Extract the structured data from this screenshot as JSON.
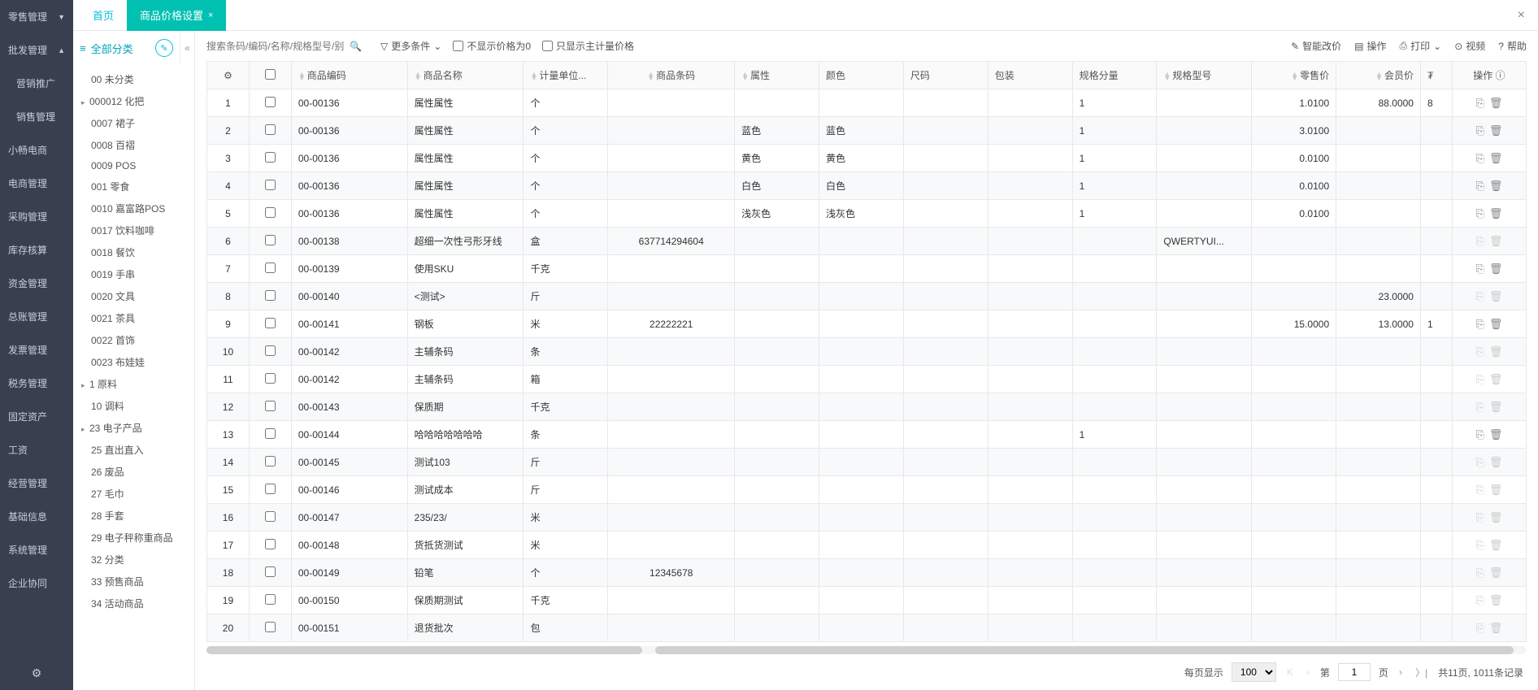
{
  "sidebar": {
    "items": [
      {
        "label": "零售管理",
        "arrow": "▼"
      },
      {
        "label": "批发管理",
        "arrow": "▲",
        "expanded": true,
        "children": [
          {
            "label": "营销推广"
          },
          {
            "label": "销售管理"
          }
        ]
      },
      {
        "label": "小畅电商"
      },
      {
        "label": "电商管理"
      },
      {
        "label": "采购管理"
      },
      {
        "label": "库存核算"
      },
      {
        "label": "资金管理"
      },
      {
        "label": "总账管理"
      },
      {
        "label": "发票管理"
      },
      {
        "label": "税务管理"
      },
      {
        "label": "固定资产"
      },
      {
        "label": "工资"
      },
      {
        "label": "经营管理"
      },
      {
        "label": "基础信息"
      },
      {
        "label": "系统管理"
      },
      {
        "label": "企业协同"
      }
    ],
    "gear": "⚙"
  },
  "tabs": {
    "home": "首页",
    "active": "商品价格设置",
    "close_all": "×"
  },
  "categories": {
    "header": "全部分类",
    "header_icon": "≡",
    "edit_icon": "✎",
    "collapse_icon": "«",
    "items": [
      {
        "label": "00 未分类"
      },
      {
        "label": "000012 化把",
        "caret": "▸"
      },
      {
        "label": "0007 裙子"
      },
      {
        "label": "0008 百褶"
      },
      {
        "label": "0009 POS"
      },
      {
        "label": "001 零食"
      },
      {
        "label": "0010 嘉富路POS"
      },
      {
        "label": "0017 饮料咖啡"
      },
      {
        "label": "0018 餐饮"
      },
      {
        "label": "0019 手串"
      },
      {
        "label": "0020 文具"
      },
      {
        "label": "0021 茶具"
      },
      {
        "label": "0022 首饰"
      },
      {
        "label": "0023 布娃娃"
      },
      {
        "label": "1 原料",
        "caret": "▸"
      },
      {
        "label": "10 调料"
      },
      {
        "label": "23 电子产品",
        "caret": "▸"
      },
      {
        "label": "25 直出直入"
      },
      {
        "label": "26 废品"
      },
      {
        "label": "27 毛巾"
      },
      {
        "label": "28 手套"
      },
      {
        "label": "29 电子秤称重商品"
      },
      {
        "label": "32 分类"
      },
      {
        "label": "33 预售商品"
      },
      {
        "label": "34 活动商品"
      }
    ]
  },
  "toolbar": {
    "search_placeholder": "搜索条码/编码/名称/规格型号/别名",
    "filter_label": "更多条件",
    "filter_icon": "▽",
    "dropdown_icon": "⌄",
    "chk_hide_zero": "不显示价格为0",
    "chk_main_unit": "只显示主计量价格",
    "smart_edit": "智能改价",
    "smart_icon": "✎",
    "operate": "操作",
    "operate_icon": "▤",
    "print": "打印",
    "print_icon": "⎙",
    "video": "视频",
    "video_icon": "⊙",
    "help": "帮助",
    "help_icon": "?"
  },
  "table": {
    "gear_icon": "⚙",
    "headers": {
      "code": "商品编码",
      "name": "商品名称",
      "unit": "计量单位...",
      "barcode": "商品条码",
      "attr": "属性",
      "color": "颜色",
      "size": "尺码",
      "pack": "包装",
      "spec_qty": "规格分量",
      "spec": "规格型号",
      "retail": "零售价",
      "member": "会员价",
      "extra": "₮",
      "ops": "操作",
      "ops_icon": "ⓘ"
    },
    "rows": [
      {
        "idx": "1",
        "code": "00-00136",
        "name": "属性属性",
        "unit": "个",
        "barcode": "",
        "attr": "",
        "color": "",
        "spec_qty": "1",
        "spec": "",
        "retail": "1.0100",
        "member": "88.0000",
        "extra": "8",
        "ops_on": true
      },
      {
        "idx": "2",
        "code": "00-00136",
        "name": "属性属性",
        "unit": "个",
        "barcode": "",
        "attr": "蓝色",
        "color": "蓝色",
        "spec_qty": "1",
        "spec": "",
        "retail": "3.0100",
        "member": "",
        "extra": "",
        "ops_on": true
      },
      {
        "idx": "3",
        "code": "00-00136",
        "name": "属性属性",
        "unit": "个",
        "barcode": "",
        "attr": "黄色",
        "color": "黄色",
        "spec_qty": "1",
        "spec": "",
        "retail": "0.0100",
        "member": "",
        "extra": "",
        "ops_on": true
      },
      {
        "idx": "4",
        "code": "00-00136",
        "name": "属性属性",
        "unit": "个",
        "barcode": "",
        "attr": "白色",
        "color": "白色",
        "spec_qty": "1",
        "spec": "",
        "retail": "0.0100",
        "member": "",
        "extra": "",
        "ops_on": true
      },
      {
        "idx": "5",
        "code": "00-00136",
        "name": "属性属性",
        "unit": "个",
        "barcode": "",
        "attr": "浅灰色",
        "color": "浅灰色",
        "spec_qty": "1",
        "spec": "",
        "retail": "0.0100",
        "member": "",
        "extra": "",
        "ops_on": true
      },
      {
        "idx": "6",
        "code": "00-00138",
        "name": "超细一次性弓形牙线",
        "unit": "盒",
        "barcode": "637714294604",
        "attr": "",
        "color": "",
        "spec_qty": "",
        "spec": "QWERTYUI...",
        "retail": "",
        "member": "",
        "extra": "",
        "ops_on": false
      },
      {
        "idx": "7",
        "code": "00-00139",
        "name": "使用SKU",
        "unit": "千克",
        "barcode": "",
        "attr": "",
        "color": "",
        "spec_qty": "",
        "spec": "",
        "retail": "",
        "member": "",
        "extra": "",
        "ops_on": true
      },
      {
        "idx": "8",
        "code": "00-00140",
        "name": "<测试>",
        "unit": "斤",
        "barcode": "",
        "attr": "",
        "color": "",
        "spec_qty": "",
        "spec": "",
        "retail": "",
        "member": "23.0000",
        "extra": "",
        "ops_on": false
      },
      {
        "idx": "9",
        "code": "00-00141",
        "name": "钢板",
        "unit": "米",
        "barcode": "22222221",
        "attr": "",
        "color": "",
        "spec_qty": "",
        "spec": "",
        "retail": "15.0000",
        "member": "13.0000",
        "extra": "1",
        "ops_on": true
      },
      {
        "idx": "10",
        "code": "00-00142",
        "name": "主辅条码",
        "unit": "条",
        "barcode": "",
        "attr": "",
        "color": "",
        "spec_qty": "",
        "spec": "",
        "retail": "",
        "member": "",
        "extra": "",
        "ops_on": false
      },
      {
        "idx": "11",
        "code": "00-00142",
        "name": "主辅条码",
        "unit": "箱",
        "barcode": "",
        "attr": "",
        "color": "",
        "spec_qty": "",
        "spec": "",
        "retail": "",
        "member": "",
        "extra": "",
        "ops_on": false
      },
      {
        "idx": "12",
        "code": "00-00143",
        "name": "保质期",
        "unit": "千克",
        "barcode": "",
        "attr": "",
        "color": "",
        "spec_qty": "",
        "spec": "",
        "retail": "",
        "member": "",
        "extra": "",
        "ops_on": false
      },
      {
        "idx": "13",
        "code": "00-00144",
        "name": "哈哈哈哈哈哈哈",
        "unit": "条",
        "barcode": "",
        "attr": "",
        "color": "",
        "spec_qty": "1",
        "spec": "",
        "retail": "",
        "member": "",
        "extra": "",
        "ops_on": true
      },
      {
        "idx": "14",
        "code": "00-00145",
        "name": "测试103",
        "unit": "斤",
        "barcode": "",
        "attr": "",
        "color": "",
        "spec_qty": "",
        "spec": "",
        "retail": "",
        "member": "",
        "extra": "",
        "ops_on": false
      },
      {
        "idx": "15",
        "code": "00-00146",
        "name": "测试成本",
        "unit": "斤",
        "barcode": "",
        "attr": "",
        "color": "",
        "spec_qty": "",
        "spec": "",
        "retail": "",
        "member": "",
        "extra": "",
        "ops_on": false
      },
      {
        "idx": "16",
        "code": "00-00147",
        "name": "235/23/",
        "unit": "米",
        "barcode": "",
        "attr": "",
        "color": "",
        "spec_qty": "",
        "spec": "",
        "retail": "",
        "member": "",
        "extra": "",
        "ops_on": false
      },
      {
        "idx": "17",
        "code": "00-00148",
        "name": "货抵货测试",
        "unit": "米",
        "barcode": "",
        "attr": "",
        "color": "",
        "spec_qty": "",
        "spec": "",
        "retail": "",
        "member": "",
        "extra": "",
        "ops_on": false
      },
      {
        "idx": "18",
        "code": "00-00149",
        "name": "铅笔",
        "unit": "个",
        "barcode": "12345678",
        "attr": "",
        "color": "",
        "spec_qty": "",
        "spec": "",
        "retail": "",
        "member": "",
        "extra": "",
        "ops_on": false
      },
      {
        "idx": "19",
        "code": "00-00150",
        "name": "保质期测试",
        "unit": "千克",
        "barcode": "",
        "attr": "",
        "color": "",
        "spec_qty": "",
        "spec": "",
        "retail": "",
        "member": "",
        "extra": "",
        "ops_on": false
      },
      {
        "idx": "20",
        "code": "00-00151",
        "name": "退货批次",
        "unit": "包",
        "barcode": "",
        "attr": "",
        "color": "",
        "spec_qty": "",
        "spec": "",
        "retail": "",
        "member": "",
        "extra": "",
        "ops_on": false
      }
    ],
    "op_edit_icon": "⎘",
    "op_del_icon": "🗑"
  },
  "pager": {
    "per_page_label": "每页显示",
    "per_page_value": "100",
    "first": "K",
    "prev": "‹",
    "page_prefix": "第",
    "page_value": "1",
    "page_suffix": "页",
    "next": "›",
    "last": "〉|",
    "summary": "共11页, 1011条记录"
  },
  "scrollbar": {
    "thumb1_left": "0%",
    "thumb1_width": "33%",
    "thumb2_left": "34%",
    "thumb2_width": "65%"
  }
}
